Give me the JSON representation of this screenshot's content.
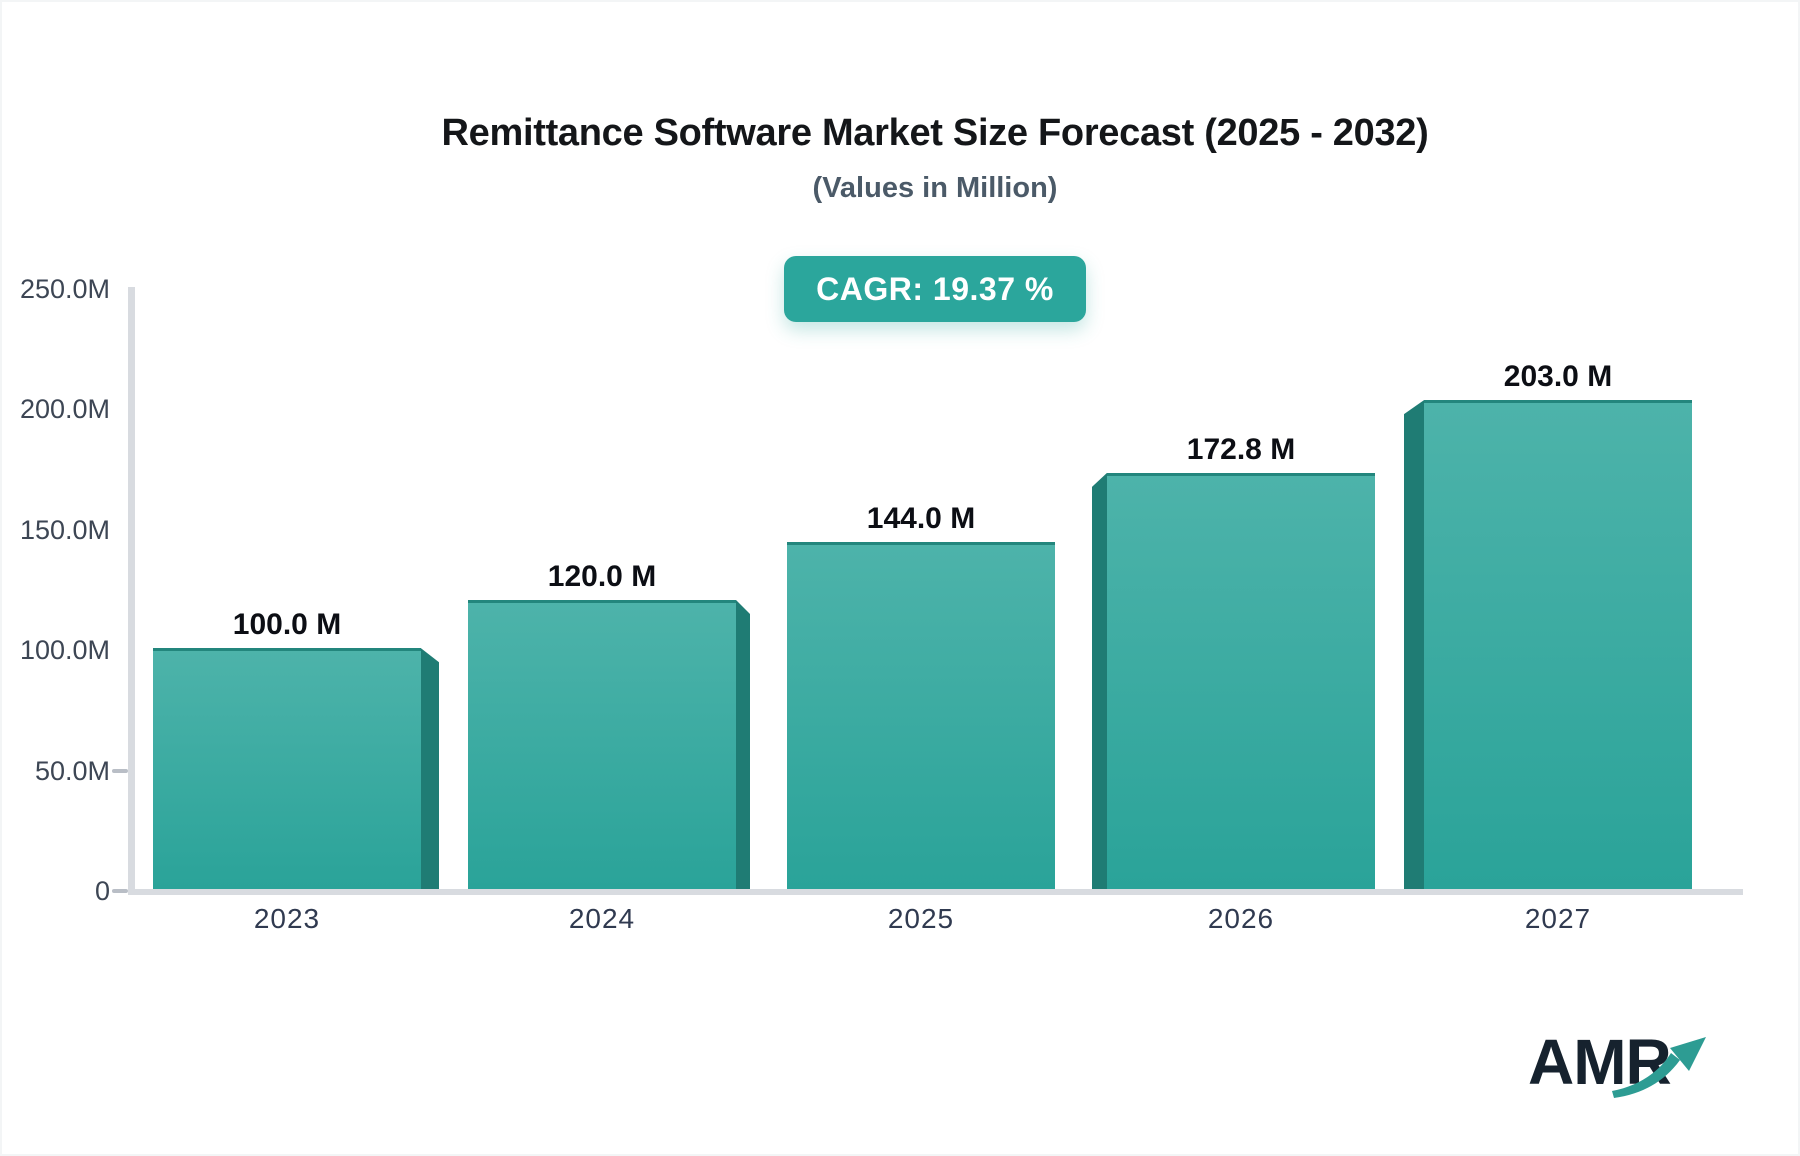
{
  "header": {
    "title": "Remittance Software Market Size Forecast (2025 - 2032)",
    "subtitle": "(Values in Million)",
    "cagr_badge": "CAGR: 19.37 %"
  },
  "chart_data": {
    "type": "bar",
    "title": "Remittance Software Market Size Forecast (2025 - 2032)",
    "subtitle": "(Values in Million)",
    "unit": "Million",
    "cagr_percent": 19.37,
    "categories": [
      "2023",
      "2024",
      "2025",
      "2026",
      "2027"
    ],
    "values": [
      100.0,
      120.0,
      144.0,
      172.8,
      203.0
    ],
    "value_labels": [
      "100.0 M",
      "120.0 M",
      "144.0 M",
      "172.8 M",
      "203.0 M"
    ],
    "ylim": [
      0,
      250
    ],
    "grid": false,
    "legend": "none",
    "y_ticks": [
      {
        "label": "250.0M",
        "value": 250,
        "dash": false
      },
      {
        "label": "200.0M",
        "value": 200,
        "dash": false
      },
      {
        "label": "150.0M",
        "value": 150,
        "dash": false
      },
      {
        "label": "100.0M",
        "value": 100,
        "dash": false
      },
      {
        "label": "50.0M",
        "value": 50,
        "dash": true
      },
      {
        "label": "0",
        "value": 0,
        "dash": true
      }
    ],
    "colors": {
      "bar_face_top": "#4db3aa",
      "bar_face_bottom": "#2aa399",
      "bar_side": "#1f7c74",
      "bar_top_edge": "#23867d",
      "axis_line": "#d8dbe0",
      "badge_background": "#2ba69c",
      "tick_text": "#3d4654",
      "category_text": "#303a50",
      "value_text": "#0c0e14"
    }
  },
  "logo": {
    "text": "AMR",
    "arrow_icon": "growth-arrow",
    "text_color": "#16222e",
    "arrow_color": "#2d9c93"
  }
}
